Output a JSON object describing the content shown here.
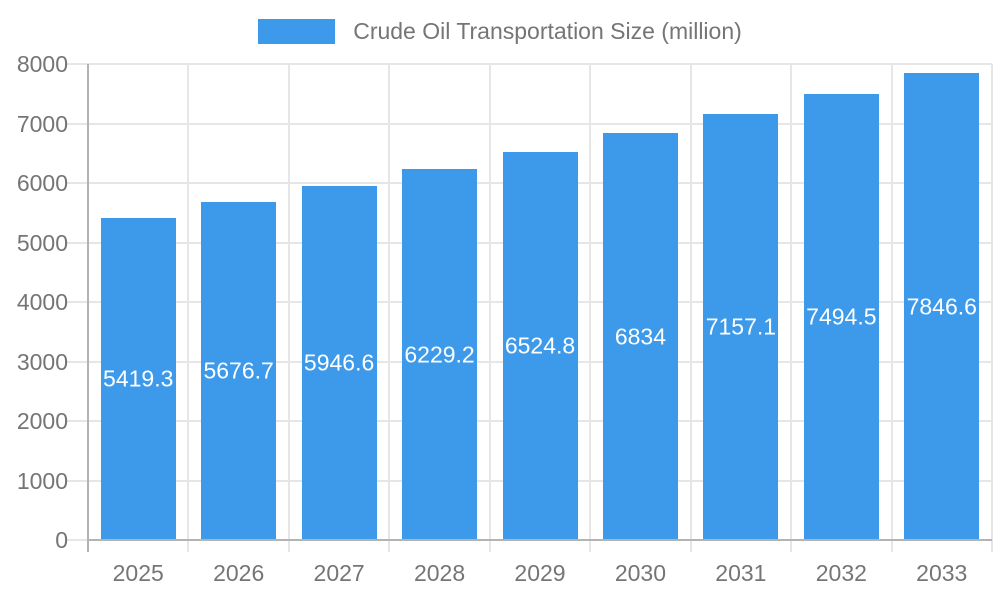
{
  "chart_data": {
    "type": "bar",
    "title": "Crude Oil Transportation Size (million)",
    "legend": {
      "position": "top",
      "entries": [
        "Crude Oil Transportation Size (million)"
      ]
    },
    "categories": [
      "2025",
      "2026",
      "2027",
      "2028",
      "2029",
      "2030",
      "2031",
      "2032",
      "2033"
    ],
    "series": [
      {
        "name": "Crude Oil Transportation Size (million)",
        "values": [
          5419.3,
          5676.7,
          5946.6,
          6229.2,
          6524.8,
          6834,
          7157.1,
          7494.5,
          7846.6
        ]
      }
    ],
    "data_labels": [
      "5419.3",
      "5676.7",
      "5946.6",
      "6229.2",
      "6524.8",
      "6834",
      "7157.1",
      "7494.5",
      "7846.6"
    ],
    "xlabel": "",
    "ylabel": "",
    "ylim": [
      0,
      8000
    ],
    "y_ticks": [
      0,
      1000,
      2000,
      3000,
      4000,
      5000,
      6000,
      7000,
      8000
    ],
    "grid": true,
    "colors": {
      "bar": "#3d9aea",
      "bar_label_text": "#ffffff",
      "axis_text": "#757575",
      "gridline": "#e6e6e6",
      "axis_line": "#b3b3b3",
      "background": "#ffffff"
    }
  }
}
